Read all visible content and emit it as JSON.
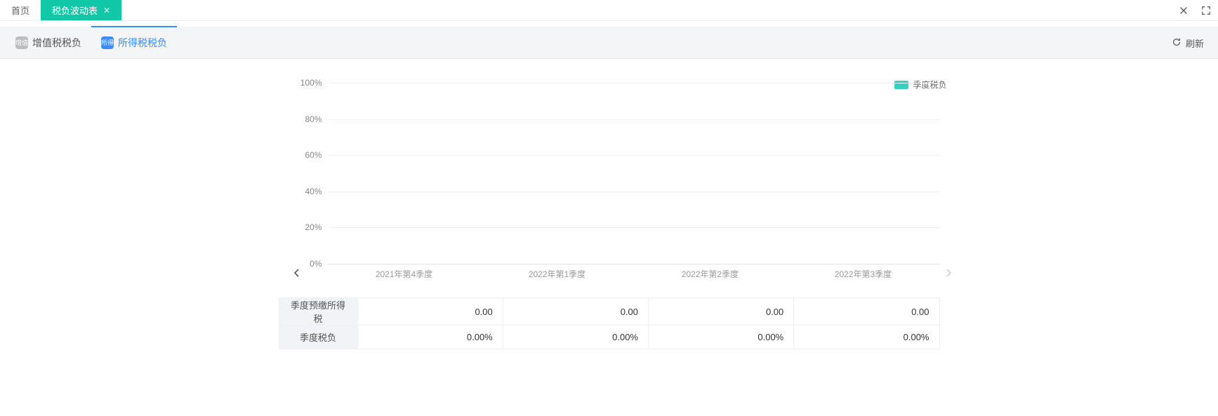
{
  "top_tabs": {
    "home": "首页",
    "active": {
      "label": "税负波动表",
      "closable": true
    }
  },
  "top_icons": {
    "close": "close-icon",
    "fullscreen": "fullscreen-icon"
  },
  "sub_tabs": {
    "items": [
      {
        "label": "增值税税负",
        "badge": "增值",
        "active": false
      },
      {
        "label": "所得税税负",
        "badge": "所得",
        "active": true
      }
    ],
    "refresh_label": "刷新"
  },
  "chart": {
    "type": "bar",
    "legend": {
      "label": "季度税负",
      "color": "#35d0c1"
    },
    "y": {
      "ticks": [
        0,
        20,
        40,
        60,
        80,
        100
      ],
      "tick_labels": [
        "0%",
        "20%",
        "40%",
        "60%",
        "80%",
        "100%"
      ],
      "min": 0,
      "max": 100
    },
    "x": {
      "categories": [
        "2021年第4季度",
        "2022年第1季度",
        "2022年第2季度",
        "2022年第3季度"
      ]
    },
    "series": {
      "name": "季度税负",
      "color": "#35d0c1",
      "values": [
        0,
        0,
        0,
        0
      ]
    },
    "grid_color": "#f1f1f1",
    "axis_color": "#e2e2e2",
    "label_color": "#9a9a9a",
    "ylabel_color": "#888",
    "background_color": "#ffffff",
    "nav": {
      "prev_enabled": true,
      "next_enabled": false
    }
  },
  "table": {
    "rows": [
      {
        "head": "季度预缴所得税",
        "cells": [
          "0.00",
          "0.00",
          "0.00",
          "0.00"
        ]
      },
      {
        "head": "季度税负",
        "cells": [
          "0.00%",
          "0.00%",
          "0.00%",
          "0.00%"
        ]
      }
    ]
  }
}
